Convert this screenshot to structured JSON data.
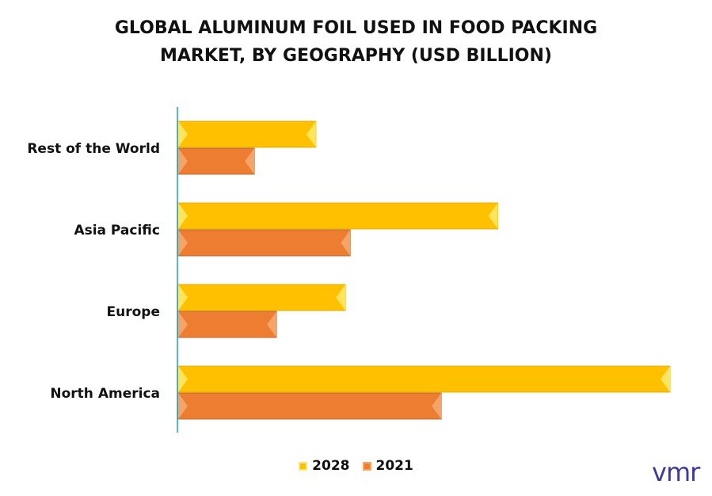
{
  "title_line1": "GLOBAL ALUMINUM FOIL USED IN FOOD PACKING",
  "title_line2": "MARKET, BY GEOGRAPHY (USD BILLION)",
  "colors": {
    "series_2028": "#FFC000",
    "series_2028_edge": "#FFE866",
    "series_2021": "#ED7D31",
    "series_2021_edge": "#F4A870",
    "axis": "#1CA3B5",
    "logo": "#3E3A9B"
  },
  "logo_text": "vmr",
  "chart_data": {
    "type": "bar",
    "orientation": "horizontal",
    "title": "GLOBAL ALUMINUM FOIL USED IN FOOD PACKING MARKET, BY GEOGRAPHY (USD BILLION)",
    "categories": [
      "Rest of the World",
      "Asia Pacific",
      "Europe",
      "North America"
    ],
    "series": [
      {
        "name": "2028",
        "values": [
          2.8,
          6.5,
          3.4,
          10.0
        ]
      },
      {
        "name": "2021",
        "values": [
          1.55,
          3.5,
          2.0,
          5.35
        ]
      }
    ],
    "xlim": [
      0,
      10.2
    ],
    "grid": false,
    "axis_labels_visible": false,
    "legend_position": "bottom"
  }
}
